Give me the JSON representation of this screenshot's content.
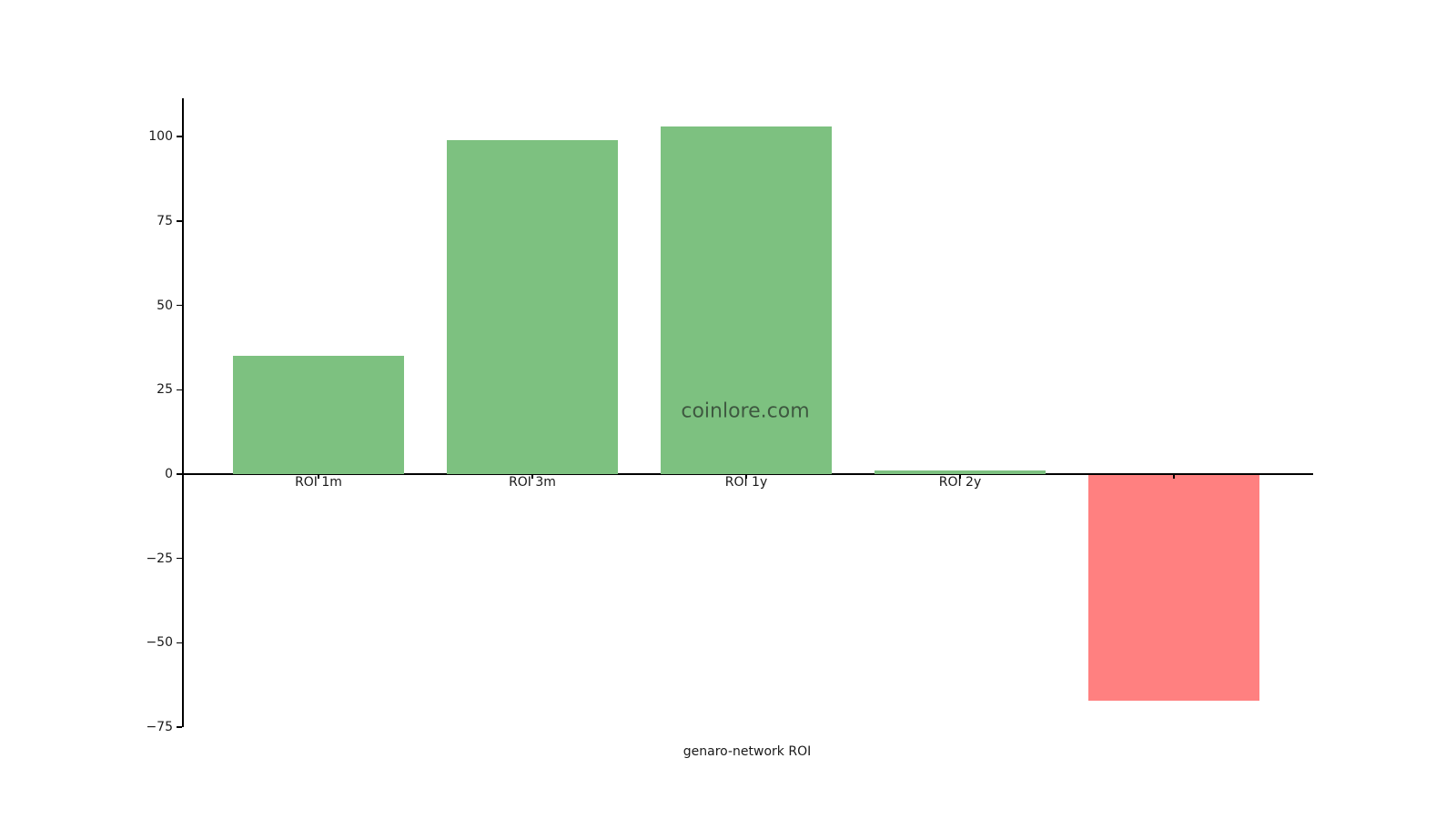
{
  "chart_data": {
    "type": "bar",
    "title": "genaro-network ROI",
    "watermark": "coinlore.com",
    "categories": [
      "ROI 1m",
      "ROI 3m",
      "ROI 1y",
      "ROI 2y",
      ""
    ],
    "values": [
      35,
      99,
      103,
      1,
      -67
    ],
    "yticks": [
      100,
      75,
      50,
      25,
      0,
      -25,
      -50,
      -75
    ],
    "ytick_labels": [
      "100",
      "75",
      "50",
      "25",
      "0",
      "−25",
      "−50",
      "−75"
    ],
    "ylim": [
      -75.5,
      111.5
    ],
    "xlabel": "",
    "ylabel": "",
    "grid": false,
    "legend_position": "none",
    "colors": {
      "positive": "#7dc180",
      "negative": "#ff8080",
      "axis": "#000000",
      "text": "#1a1a1a"
    }
  }
}
